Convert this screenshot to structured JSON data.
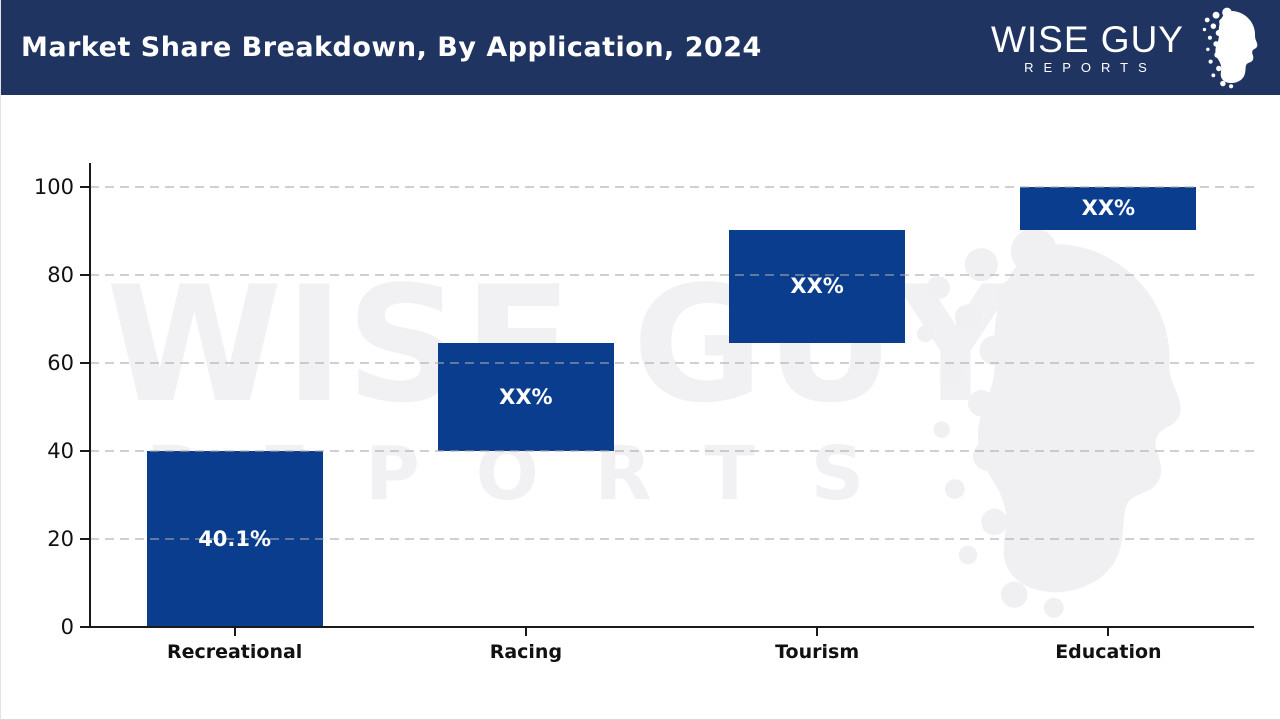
{
  "header": {
    "title": "Market Share Breakdown, By Application, 2024",
    "logo": {
      "line1": "WISE GUY",
      "line2": "REPORTS"
    },
    "bg_color": "#203462"
  },
  "watermark": {
    "line1": "WISE GUY",
    "line2": "REPORTS"
  },
  "chart_data": {
    "type": "bar",
    "subtype": "waterfall",
    "title": "Market Share Breakdown, By Application, 2024",
    "categories": [
      "Recreational",
      "Racing",
      "Tourism",
      "Education"
    ],
    "segments": [
      {
        "category": "Recreational",
        "start": 0,
        "end": 40.1,
        "value": 40.1,
        "label": "40.1%"
      },
      {
        "category": "Racing",
        "start": 40.1,
        "end": 64.5,
        "value": 24.4,
        "label": "XX%"
      },
      {
        "category": "Tourism",
        "start": 64.5,
        "end": 90.3,
        "value": 25.8,
        "label": "XX%"
      },
      {
        "category": "Education",
        "start": 90.3,
        "end": 100,
        "value": 9.7,
        "label": "XX%"
      }
    ],
    "y_ticks": [
      0,
      20,
      40,
      60,
      80,
      100
    ],
    "ylim": [
      0,
      105.5
    ],
    "xlabel": "",
    "ylabel": "",
    "grid": "horizontal-dashed",
    "legend": "none",
    "bar_color": "#0a3d8e",
    "bar_label_color": "#ffffff",
    "axis_color": "#1a1a1a",
    "grid_color": "#aaaaaa"
  }
}
